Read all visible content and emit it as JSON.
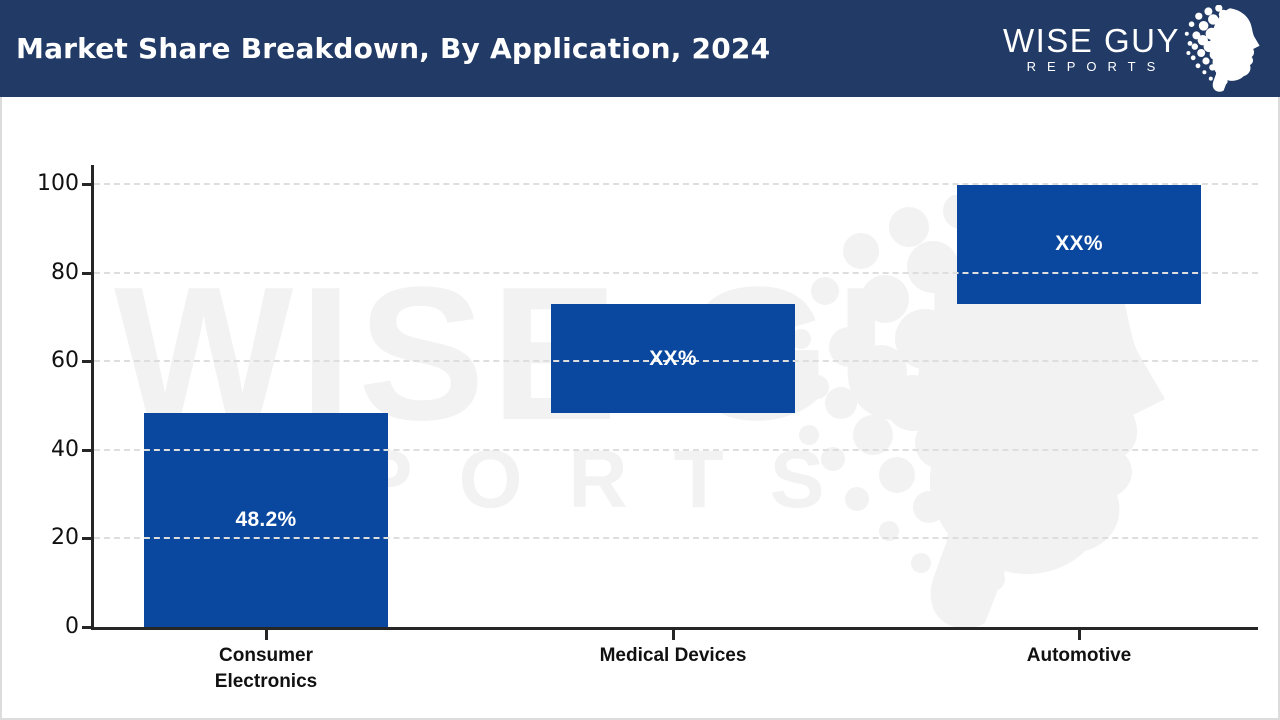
{
  "header": {
    "title": "Market Share Breakdown, By Application, 2024",
    "logo": {
      "line1": "WISE GUY",
      "line2": "REPORTS"
    }
  },
  "watermark": {
    "line1": "WISE GUY",
    "line2": "REPORTS"
  },
  "colors": {
    "header_bg": "#213a66",
    "bar": "#0a479e",
    "gridline": "#dedede",
    "axis": "#262626",
    "bar_label_text": "#ffffff",
    "watermark": "#f2f2f2"
  },
  "chart_data": {
    "type": "bar",
    "subtype": "waterfall",
    "title": "Market Share Breakdown, By Application, 2024",
    "categories": [
      "Consumer\nElectronics",
      "Medical Devices",
      "Automotive"
    ],
    "segments": [
      {
        "category": "Consumer Electronics",
        "from": 0,
        "to": 48.2,
        "value": 48.2,
        "label": "48.2%"
      },
      {
        "category": "Medical Devices",
        "from": 48.2,
        "to": 72.9,
        "value": 24.7,
        "label": "XX%"
      },
      {
        "category": "Automotive",
        "from": 72.9,
        "to": 99.8,
        "value": 26.9,
        "label": "XX%"
      }
    ],
    "xlabel": "",
    "ylabel": "",
    "ylim": [
      0,
      100
    ],
    "yticks": [
      0,
      20,
      40,
      60,
      80,
      100
    ],
    "grid": true,
    "grid_style": "dashed",
    "legend": false,
    "bar_color": "#0a479e",
    "value_label_color": "#ffffff"
  }
}
